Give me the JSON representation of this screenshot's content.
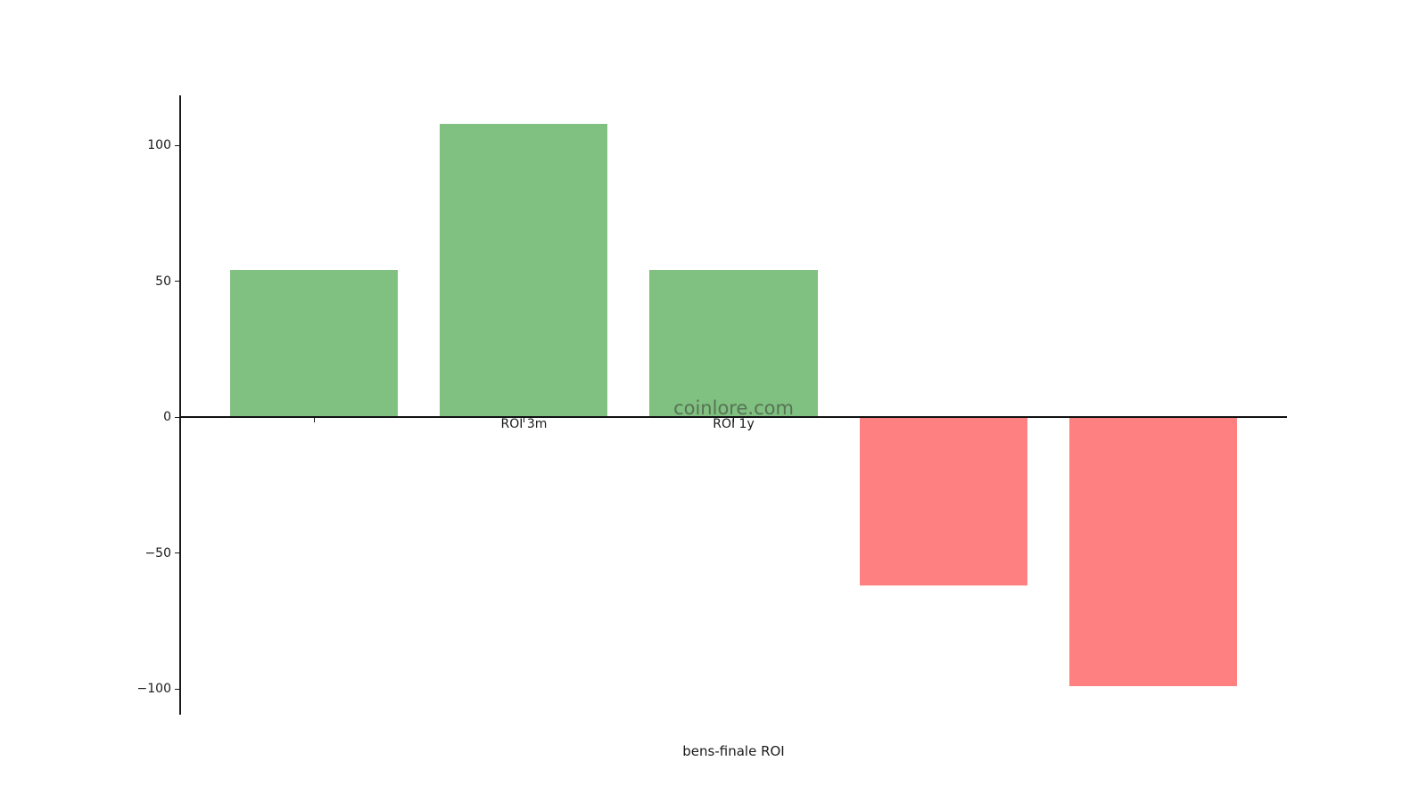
{
  "watermark": {
    "text": "coinlore.com"
  },
  "chart_data": {
    "type": "bar",
    "xlabel": "bens-finale ROI",
    "ylabel": "",
    "categories": [
      "",
      "ROI 3m",
      "ROI 1y",
      "",
      ""
    ],
    "values": [
      54,
      108,
      54,
      -62,
      -99
    ],
    "bar_width": 0.8,
    "xlim": [
      -0.64,
      4.64
    ],
    "ylim": [
      -109.4,
      118.4
    ],
    "ytick_values": [
      100,
      50,
      0,
      -50,
      -100
    ],
    "ytick_labels": [
      "100",
      "50",
      "0",
      "−50",
      "−100"
    ],
    "xticks": {
      "positions": [
        0,
        1,
        2
      ],
      "labels": [
        "",
        "ROI 3m",
        "ROI 1y"
      ]
    },
    "grid": false,
    "legend": "none",
    "colors": {
      "positive_bar": "#80c080",
      "negative_bar": "#ff8080",
      "axis": "#1a1a1a",
      "watermark_text": "rgba(51,51,51,0.55)"
    }
  }
}
